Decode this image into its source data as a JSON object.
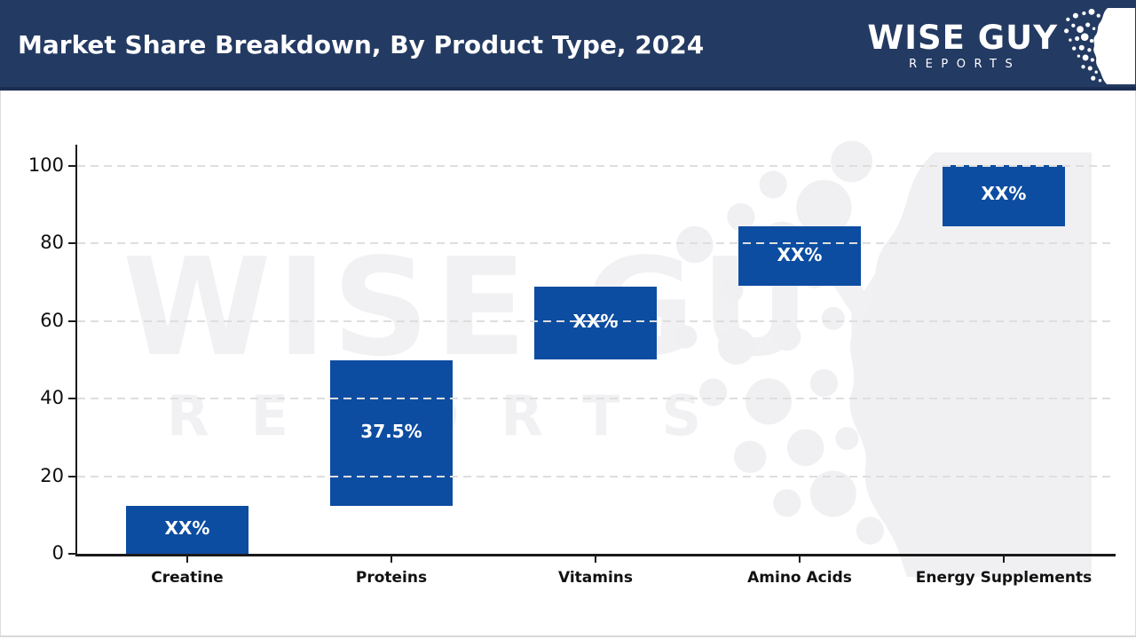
{
  "header": {
    "title": "Market Share Breakdown, By Product Type, 2024",
    "logo": {
      "line1": "WISE GUY",
      "line2": "REPORTS"
    }
  },
  "watermark": {
    "line1": "WISE GUY",
    "line2": "REPORTS"
  },
  "chart_data": {
    "type": "bar",
    "variant": "floating-segment-waterfall",
    "title": "Market Share Breakdown, By Product Type, 2024",
    "categories": [
      "Creatine",
      "Proteins",
      "Vitamins",
      "Amino Acids",
      "Energy Supplements"
    ],
    "bars": [
      {
        "category": "Creatine",
        "start": 0,
        "end": 12.3,
        "label": "XX%"
      },
      {
        "category": "Proteins",
        "start": 12.4,
        "end": 49.9,
        "label": "37.5%"
      },
      {
        "category": "Vitamins",
        "start": 50.2,
        "end": 68.8,
        "label": "XX%"
      },
      {
        "category": "Amino Acids",
        "start": 69.0,
        "end": 84.4,
        "label": "XX%"
      },
      {
        "category": "Energy Supplements",
        "start": 84.5,
        "end": 100.3,
        "label": "XX%"
      }
    ],
    "yticks": [
      0,
      20,
      40,
      60,
      80,
      100
    ],
    "ylim": [
      0,
      105
    ],
    "xlabel": "",
    "ylabel": "",
    "grid": "horizontal-dashed",
    "legend": "none",
    "bar_color": "#0d4da1",
    "bar_label_color": "#ffffff",
    "axis_color": "#1a1a1a",
    "grid_color": "#dedede"
  },
  "colors": {
    "header_bg": "#233a62",
    "header_accent": "#1b2d50",
    "watermark": "#f1f1f4",
    "background": "#ffffff"
  }
}
